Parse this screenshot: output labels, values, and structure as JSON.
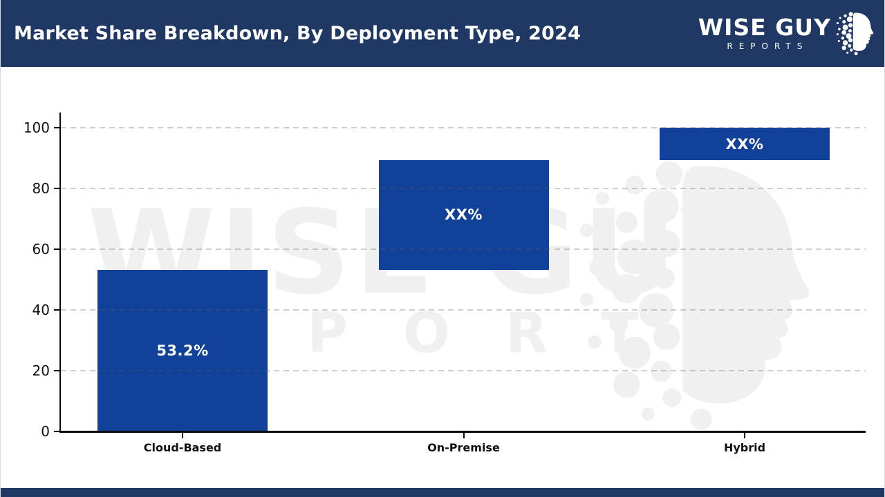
{
  "header": {
    "title": "Market Share Breakdown, By Deployment Type, 2024",
    "background": "#1F3864",
    "logo": {
      "wordmark": "WISE GUY",
      "subtext": "REPORTS"
    }
  },
  "watermark": {
    "wordmark": "WISE GUY",
    "subtext": "REPORTS"
  },
  "footer": {
    "background": "#1F3864"
  },
  "chart_data": {
    "type": "bar",
    "subtype": "floating-segment-breakdown",
    "title": "Market Share Breakdown, By Deployment Type, 2024",
    "categories": [
      "Cloud-Based",
      "On-Premise",
      "Hybrid"
    ],
    "bars": [
      {
        "category": "Cloud-Based",
        "from": 0,
        "to": 53.2,
        "label": "53.2%"
      },
      {
        "category": "On-Premise",
        "from": 53.2,
        "to": 89.3,
        "label": "XX%"
      },
      {
        "category": "Hybrid",
        "from": 89.3,
        "to": 100,
        "label": "XX%"
      }
    ],
    "xlabel": "",
    "ylabel": "",
    "ylim": [
      0,
      105
    ],
    "yticks": [
      0,
      20,
      40,
      60,
      80,
      100
    ],
    "grid": {
      "axis": "y",
      "style": "dashed",
      "on": true
    },
    "legend": "none",
    "bar_color": "#114199",
    "label_color": "#ffffff",
    "axis_color": "#0a0a0a",
    "background": "#ffffff"
  }
}
